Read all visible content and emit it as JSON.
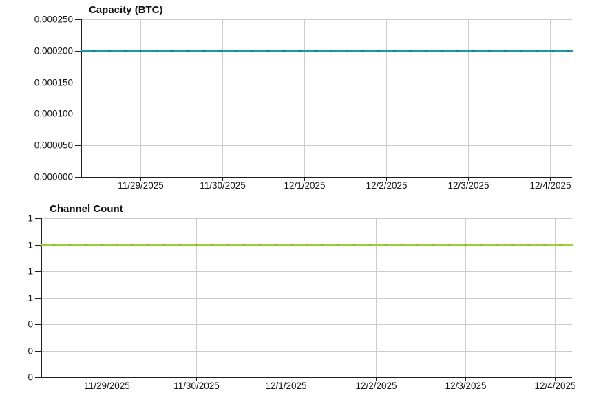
{
  "palette": {
    "background": "#ffffff",
    "grid": "#cccccc",
    "axis": "#1f1f1f",
    "text": "#141414",
    "capacity_line": "#1b9aa0",
    "capacity_marker": "#0e7f88",
    "channel_line": "#9ccd3a",
    "channel_marker": "#86bd2e"
  },
  "chart_data": [
    {
      "type": "line",
      "title": "Capacity (BTC)",
      "x": [
        "11/29/2025",
        "11/30/2025",
        "12/1/2025",
        "12/2/2025",
        "12/3/2025",
        "12/4/2025"
      ],
      "series": [
        {
          "name": "Capacity (BTC)",
          "values": [
            0.0002,
            0.0002,
            0.0002,
            0.0002,
            0.0002,
            0.0002
          ],
          "color": "#1b9aa0",
          "marker_color": "#0e7f88"
        }
      ],
      "ylim": [
        0,
        0.00025
      ],
      "y_tick_values": [
        0.00025,
        0.0002,
        0.00015,
        0.0001,
        5e-05,
        0
      ],
      "y_tick_labels": [
        "0.000250",
        "0.000200",
        "0.000150",
        "0.000100",
        "0.000050",
        "0.000000"
      ],
      "x_tick_labels": [
        "11/29/2025",
        "11/30/2025",
        "12/1/2025",
        "12/2/2025",
        "12/3/2025",
        "12/4/2025"
      ],
      "grid": true,
      "legend": "none"
    },
    {
      "type": "line",
      "title": "Channel Count",
      "x": [
        "11/29/2025",
        "11/30/2025",
        "12/1/2025",
        "12/2/2025",
        "12/3/2025",
        "12/4/2025"
      ],
      "series": [
        {
          "name": "Channel Count",
          "values": [
            1,
            1,
            1,
            1,
            1,
            1
          ],
          "color": "#9ccd3a",
          "marker_color": "#86bd2e"
        }
      ],
      "ylim": [
        0,
        1.2
      ],
      "y_tick_values": [
        1.2,
        1.0,
        0.8,
        0.6,
        0.4,
        0.2,
        0.0
      ],
      "y_tick_labels": [
        "1",
        "1",
        "1",
        "1",
        "0",
        "0",
        "0"
      ],
      "x_tick_labels": [
        "11/29/2025",
        "11/30/2025",
        "12/1/2025",
        "12/2/2025",
        "12/3/2025",
        "12/4/2025"
      ],
      "grid": true,
      "legend": "none"
    }
  ]
}
